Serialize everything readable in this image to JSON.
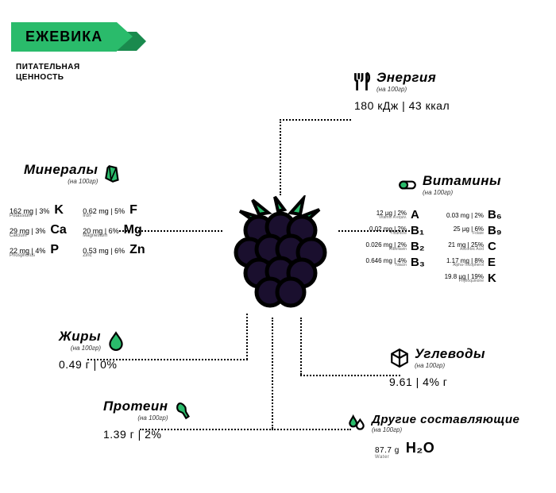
{
  "title": "ЕЖЕВИКА",
  "subtitle_l1": "ПИТАТЕЛЬНАЯ",
  "subtitle_l2": "ЦЕННОСТЬ",
  "per": "(на 100гр)",
  "colors": {
    "accent": "#2abb6b",
    "berry": "#1a0f2e"
  },
  "energy": {
    "title": "Энергия",
    "value": "180 кДж | 43 ккал"
  },
  "minerals": {
    "title": "Минералы",
    "col1": [
      {
        "val": "162 mg | 3%",
        "sym": "K",
        "name": "Potassium"
      },
      {
        "val": "29 mg | 3%",
        "sym": "Ca",
        "name": "Calcium"
      },
      {
        "val": "22 mg | 4%",
        "sym": "P",
        "name": "Phosphorus"
      }
    ],
    "col2": [
      {
        "val": "0.62 mg | 5%",
        "sym": "F",
        "name": "Iron"
      },
      {
        "val": "20 mg | 6%",
        "sym": "Mg",
        "name": "Magnesium"
      },
      {
        "val": "0.53 mg | 6%",
        "sym": "Zn",
        "name": "Zinc"
      }
    ]
  },
  "vitamins": {
    "title": "Витамины",
    "col1": [
      {
        "val": "12 µg | 2%",
        "sym": "A",
        "name": "Vitamin A equiv."
      },
      {
        "val": "0.02 mg | 2%",
        "sym": "B₁",
        "name": "Thiamine"
      },
      {
        "val": "0.026 mg | 2%",
        "sym": "B₂",
        "name": "Riboflavin"
      },
      {
        "val": "0.646 mg | 4%",
        "sym": "B₃",
        "name": "Niacin"
      }
    ],
    "col2": [
      {
        "val": "0.03 mg | 2%",
        "sym": "B₆",
        "name": ""
      },
      {
        "val": "25 µg | 6%",
        "sym": "B₉",
        "name": "Folate"
      },
      {
        "val": "21 mg | 25%",
        "sym": "C",
        "name": "Ascorbic Acid"
      },
      {
        "val": "1.17 mg | 8%",
        "sym": "E",
        "name": "Alpha-Tocopherol"
      },
      {
        "val": "19.8 µg | 19%",
        "sym": "K",
        "name": "Phylloquinone"
      }
    ]
  },
  "fats": {
    "title": "Жиры",
    "value": "0.49 г | 0%"
  },
  "protein": {
    "title": "Протеин",
    "value": "1.39 г | 2%"
  },
  "carbs": {
    "title": "Углеводы",
    "value": "9.61 | 4% г"
  },
  "other": {
    "title": "Другие составляющие",
    "value": "87.7 g",
    "sym": "H₂O",
    "name": "Water"
  }
}
